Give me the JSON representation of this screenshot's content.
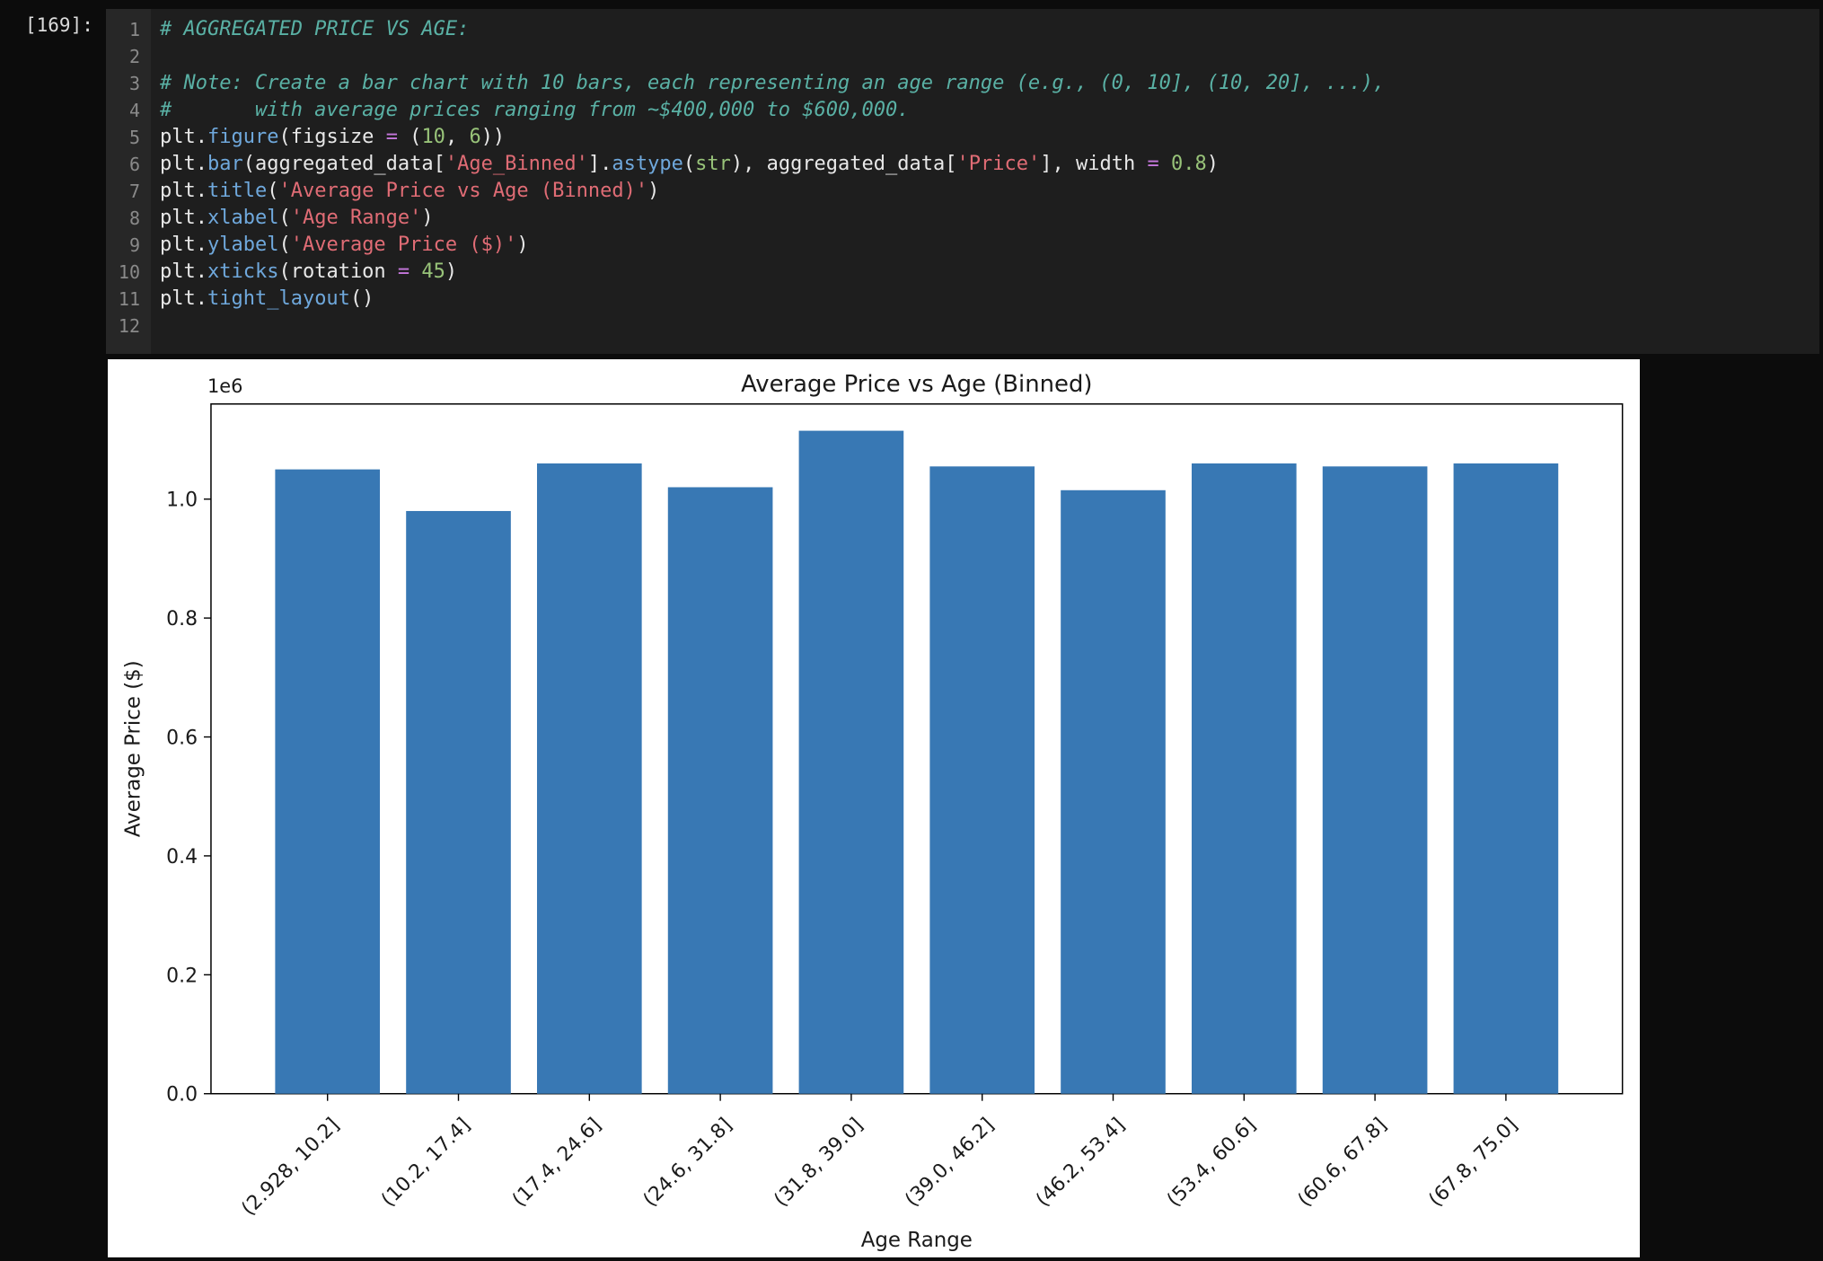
{
  "notebook": {
    "prompt": "[169]:"
  },
  "editor": {
    "lines": [
      {
        "n": "1",
        "tokens": [
          [
            "c",
            "# AGGREGATED PRICE VS AGE:"
          ]
        ]
      },
      {
        "n": "2",
        "tokens": []
      },
      {
        "n": "3",
        "tokens": [
          [
            "c",
            "# Note: Create a bar chart with 10 bars, each representing an age range (e.g., (0, 10], (10, 20], ...),"
          ]
        ]
      },
      {
        "n": "4",
        "tokens": [
          [
            "c",
            "#       with average prices ranging from ~$400,000 to $600,000."
          ]
        ]
      },
      {
        "n": "5",
        "tokens": [
          [
            "p",
            "plt."
          ],
          [
            "f",
            "figure"
          ],
          [
            "p",
            "(figsize "
          ],
          [
            "o",
            "="
          ],
          [
            "p",
            " ("
          ],
          [
            "n",
            "10"
          ],
          [
            "p",
            ", "
          ],
          [
            "n",
            "6"
          ],
          [
            "p",
            "))"
          ]
        ]
      },
      {
        "n": "6",
        "tokens": [
          [
            "p",
            "plt."
          ],
          [
            "f",
            "bar"
          ],
          [
            "p",
            "(aggregated_data["
          ],
          [
            "s",
            "'Age_Binned'"
          ],
          [
            "p",
            "]."
          ],
          [
            "f",
            "astype"
          ],
          [
            "p",
            "("
          ],
          [
            "b",
            "str"
          ],
          [
            "p",
            "), aggregated_data["
          ],
          [
            "s",
            "'Price'"
          ],
          [
            "p",
            "], width "
          ],
          [
            "o",
            "="
          ],
          [
            "p",
            " "
          ],
          [
            "n",
            "0.8"
          ],
          [
            "p",
            ")"
          ]
        ]
      },
      {
        "n": "7",
        "tokens": [
          [
            "p",
            "plt."
          ],
          [
            "f",
            "title"
          ],
          [
            "p",
            "("
          ],
          [
            "s",
            "'Average Price vs Age (Binned)'"
          ],
          [
            "p",
            ")"
          ]
        ]
      },
      {
        "n": "8",
        "tokens": [
          [
            "p",
            "plt."
          ],
          [
            "f",
            "xlabel"
          ],
          [
            "p",
            "("
          ],
          [
            "s",
            "'Age Range'"
          ],
          [
            "p",
            ")"
          ]
        ]
      },
      {
        "n": "9",
        "tokens": [
          [
            "p",
            "plt."
          ],
          [
            "f",
            "ylabel"
          ],
          [
            "p",
            "("
          ],
          [
            "s",
            "'Average Price ($)'"
          ],
          [
            "p",
            ")"
          ]
        ]
      },
      {
        "n": "10",
        "tokens": [
          [
            "p",
            "plt."
          ],
          [
            "f",
            "xticks"
          ],
          [
            "p",
            "(rotation "
          ],
          [
            "o",
            "="
          ],
          [
            "p",
            " "
          ],
          [
            "n",
            "45"
          ],
          [
            "p",
            ")"
          ]
        ]
      },
      {
        "n": "11",
        "tokens": [
          [
            "p",
            "plt."
          ],
          [
            "f",
            "tight_layout"
          ],
          [
            "p",
            "()"
          ]
        ]
      },
      {
        "n": "12",
        "tokens": []
      }
    ]
  },
  "chart_data": {
    "type": "bar",
    "title": "Average Price vs Age (Binned)",
    "xlabel": "Age Range",
    "ylabel": "Average Price ($)",
    "offset_text": "1e6",
    "categories": [
      "(2.928, 10.2]",
      "(10.2, 17.4]",
      "(17.4, 24.6]",
      "(24.6, 31.8]",
      "(31.8, 39.0]",
      "(39.0, 46.2]",
      "(46.2, 53.4]",
      "(53.4, 60.6]",
      "(60.6, 67.8]",
      "(67.8, 75.0]"
    ],
    "values": [
      1050000,
      980000,
      1060000,
      1020000,
      1115000,
      1055000,
      1015000,
      1060000,
      1055000,
      1060000
    ],
    "yticks": [
      0,
      200000,
      400000,
      600000,
      800000,
      1000000
    ],
    "ytick_labels": [
      "0.0",
      "0.2",
      "0.4",
      "0.6",
      "0.8",
      "1.0"
    ],
    "ylim": [
      0,
      1160000
    ],
    "bar_color": "#3878b4",
    "grid": false,
    "legend": "none"
  }
}
